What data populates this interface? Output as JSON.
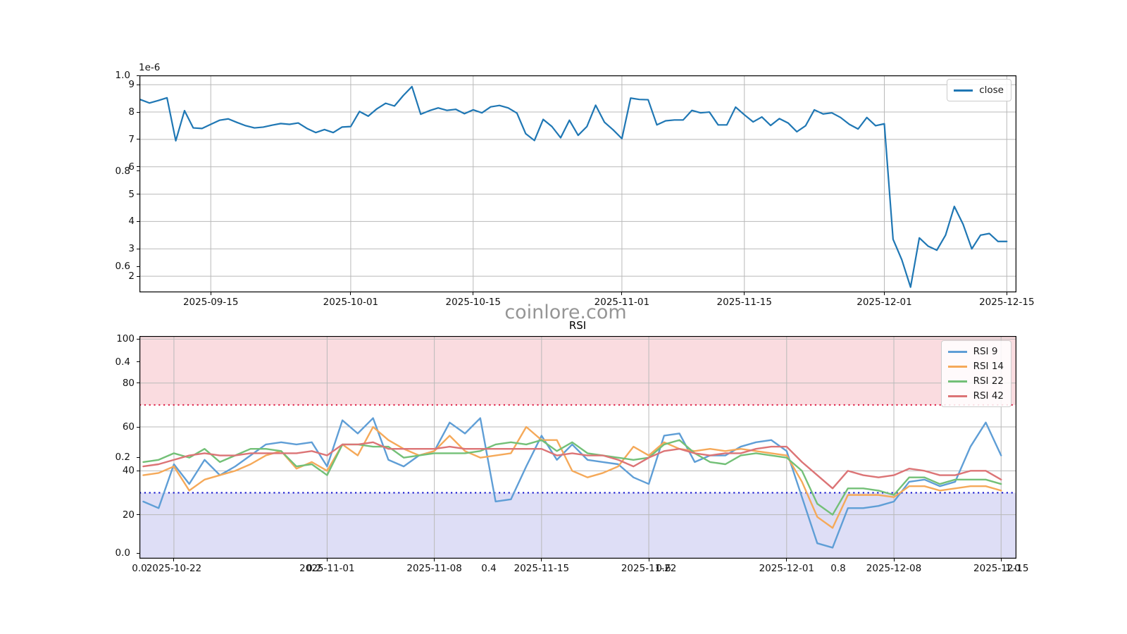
{
  "watermark": "coinlore.com",
  "figure_axis": {
    "yticks": [
      "1.0",
      "0.8",
      "0.6",
      "0.4",
      "0.2",
      "0.0"
    ],
    "xticks": [
      "0.0",
      "0.2",
      "0.4",
      "0.6",
      "0.8",
      "1.0"
    ]
  },
  "chart_data": [
    {
      "type": "line",
      "name": "price",
      "title": "",
      "unit_multiplier": "1e-6",
      "legend_position": "upper right",
      "grid": true,
      "ylim": [
        1.41,
        9.34
      ],
      "yticks": [
        9,
        8,
        7,
        6,
        5,
        4,
        3,
        2
      ],
      "x_start_date": "2025-09-07",
      "x_end_date": "2025-12-15",
      "x_tick_dates": [
        "2025-09-15",
        "2025-10-01",
        "2025-10-15",
        "2025-11-01",
        "2025-11-15",
        "2025-12-01",
        "2025-12-15"
      ],
      "series": [
        {
          "name": "close",
          "color": "#1f77b4",
          "values_unit": "1e-6",
          "values": [
            8.45,
            8.33,
            8.42,
            8.52,
            6.95,
            8.05,
            7.42,
            7.4,
            7.55,
            7.7,
            7.75,
            7.62,
            7.5,
            7.42,
            7.45,
            7.52,
            7.58,
            7.55,
            7.6,
            7.4,
            7.25,
            7.36,
            7.25,
            7.45,
            7.47,
            8.02,
            7.85,
            8.12,
            8.32,
            8.22,
            8.6,
            8.93,
            7.92,
            8.05,
            8.15,
            8.06,
            8.1,
            7.94,
            8.08,
            7.97,
            8.19,
            8.24,
            8.15,
            7.96,
            7.21,
            6.96,
            7.73,
            7.47,
            7.06,
            7.7,
            7.15,
            7.47,
            8.25,
            7.63,
            7.35,
            7.03,
            8.51,
            8.46,
            8.45,
            7.53,
            7.68,
            7.71,
            7.71,
            8.06,
            7.97,
            8.0,
            7.53,
            7.53,
            8.18,
            7.9,
            7.64,
            7.82,
            7.51,
            7.76,
            7.6,
            7.28,
            7.5,
            8.08,
            7.93,
            7.97,
            7.8,
            7.55,
            7.38,
            7.8,
            7.5,
            7.57,
            3.35,
            2.6,
            1.6,
            3.4,
            3.1,
            2.95,
            3.5,
            4.55,
            3.9,
            3.0,
            3.5,
            3.56,
            3.27,
            3.27
          ]
        }
      ]
    },
    {
      "type": "line",
      "name": "rsi",
      "title": "RSI",
      "legend_position": "upper right",
      "grid": true,
      "ylim": [
        0,
        101.4
      ],
      "yticks": [
        100,
        80,
        60,
        40,
        20
      ],
      "overbought_level": 70,
      "oversold_level": 30,
      "bands": [
        {
          "y1": 70,
          "y2": 101.4,
          "color": "#fadce0"
        },
        {
          "y1": 0,
          "y2": 30,
          "color": "#dedef6"
        }
      ],
      "hlines": [
        {
          "y": 70,
          "color": "#dc143c",
          "style": "dotted"
        },
        {
          "y": 30,
          "color": "#0f10cd",
          "style": "dotted"
        }
      ],
      "x_start_date": "2025-10-20",
      "x_end_date": "2025-12-15",
      "x_tick_dates": [
        "2025-10-22",
        "2025-11-01",
        "2025-11-08",
        "2025-11-15",
        "2025-11-22",
        "2025-12-01",
        "2025-12-08",
        "2025-12-15"
      ],
      "series": [
        {
          "name": "RSI 9",
          "color": "#5f9ed6",
          "values": [
            26,
            23,
            43,
            34,
            45,
            38,
            42,
            47,
            52,
            53,
            52,
            53,
            42,
            63,
            57,
            64,
            45,
            42,
            47,
            49,
            62,
            57,
            64,
            26,
            27,
            42,
            56,
            45,
            52,
            45,
            44,
            43,
            37,
            34,
            56,
            57,
            44,
            47,
            47,
            51,
            53,
            54,
            49,
            28,
            7,
            5,
            23,
            23,
            24,
            26,
            35,
            36,
            33,
            35,
            51,
            62,
            47
          ]
        },
        {
          "name": "RSI 14",
          "color": "#f5a959",
          "values": [
            38,
            39,
            42,
            31,
            36,
            38,
            40,
            43,
            47,
            49,
            41,
            44,
            40,
            52,
            47,
            60,
            54,
            50,
            47,
            49,
            56,
            49,
            46,
            47,
            48,
            60,
            54,
            54,
            40,
            37,
            39,
            42,
            51,
            47,
            53,
            50,
            49,
            50,
            49,
            50,
            49,
            48,
            47,
            35,
            19,
            14,
            29,
            29,
            29,
            28,
            33,
            33,
            31,
            32,
            33,
            33,
            31
          ]
        },
        {
          "name": "RSI 22",
          "color": "#73c077",
          "values": [
            44,
            45,
            48,
            46,
            50,
            44,
            47,
            50,
            50,
            49,
            42,
            43,
            38,
            52,
            52,
            51,
            51,
            46,
            47,
            48,
            48,
            48,
            49,
            52,
            53,
            52,
            54,
            49,
            53,
            48,
            47,
            46,
            45,
            46,
            52,
            54,
            48,
            44,
            43,
            47,
            48,
            47,
            46,
            40,
            25,
            20,
            32,
            32,
            31,
            29,
            37,
            37,
            34,
            36,
            36,
            36,
            34
          ]
        },
        {
          "name": "RSI 42",
          "color": "#dc7476",
          "values": [
            42,
            43,
            45,
            47,
            48,
            47,
            47,
            48,
            48,
            48,
            48,
            49,
            47,
            52,
            52,
            53,
            50,
            50,
            50,
            50,
            51,
            50,
            50,
            50,
            50,
            50,
            50,
            47,
            48,
            47,
            47,
            45,
            42,
            46,
            49,
            50,
            48,
            47,
            48,
            48,
            50,
            51,
            51,
            44,
            38,
            32,
            40,
            38,
            37,
            38,
            41,
            40,
            38,
            38,
            40,
            40,
            36
          ]
        }
      ]
    }
  ]
}
